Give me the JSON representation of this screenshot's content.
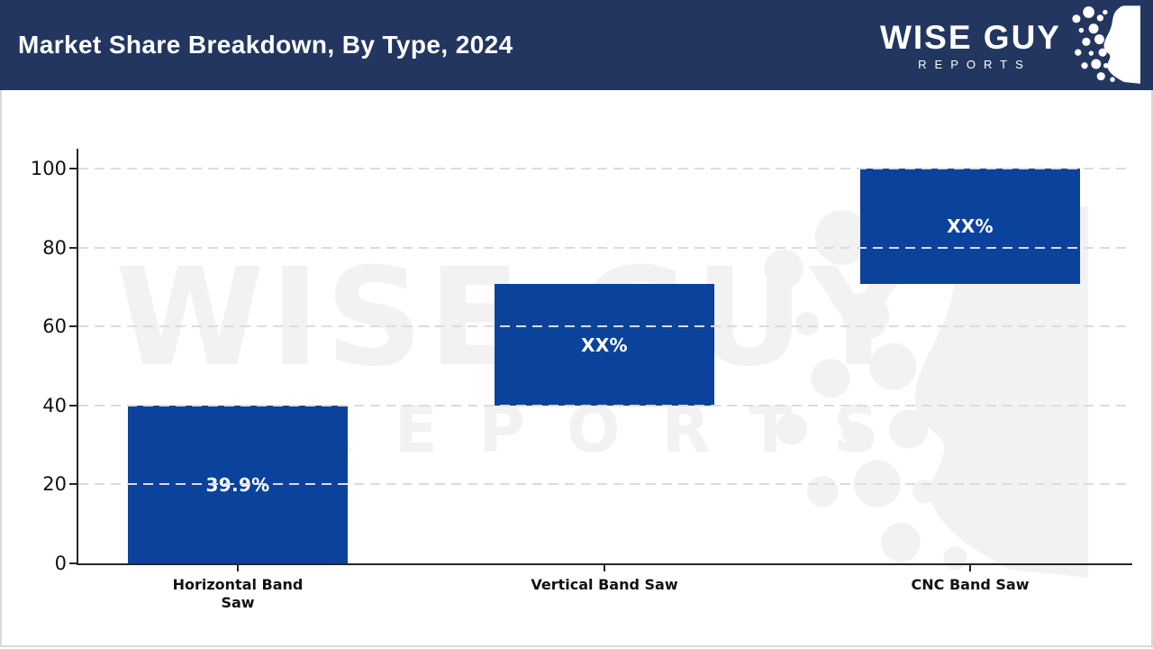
{
  "header": {
    "title": "Market Share Breakdown, By Type, 2024",
    "bg_color": "#22365f",
    "logo": {
      "line1": "WISE GUY",
      "line2": "REPORTS"
    }
  },
  "watermark": {
    "line1": "WISE GUY",
    "line2": "REPORTS"
  },
  "chart_data": {
    "type": "bar",
    "subtype": "waterfall-stacked",
    "title": "Market Share Breakdown, By Type, 2024",
    "categories": [
      "Horizontal Band Saw",
      "Vertical Band Saw",
      "CNC Band Saw"
    ],
    "xtick_lines": [
      [
        "Horizontal Band",
        "Saw"
      ],
      [
        "Vertical Band Saw",
        ""
      ],
      [
        "CNC Band Saw",
        ""
      ]
    ],
    "bars": [
      {
        "category": "Horizontal Band Saw",
        "base": 0,
        "value": 39.9,
        "label": "39.9%"
      },
      {
        "category": "Vertical Band Saw",
        "base": 39.9,
        "value": 30.9,
        "label": "XX%"
      },
      {
        "category": "CNC Band Saw",
        "base": 70.8,
        "value": 29.2,
        "label": "XX%"
      }
    ],
    "bar_color": "#0b429c",
    "ylim": [
      0,
      100
    ],
    "yticks": [
      "0",
      "20",
      "40",
      "60",
      "80",
      "100"
    ],
    "grid": "horizontal dashed, drawn above bars",
    "legend": "none"
  }
}
